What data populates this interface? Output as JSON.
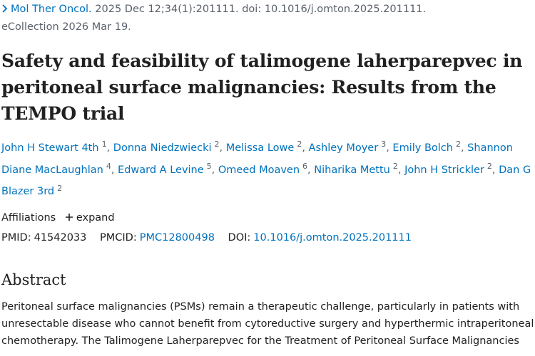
{
  "citation": {
    "journal": "Mol Ther Oncol.",
    "details": "2025 Dec 12;34(1):201111. doi: 10.1016/j.omton.2025.201111.",
    "ecollection": "eCollection 2026 Mar 19."
  },
  "title": "Safety and feasibility of talimogene laherparepvec in peritoneal surface malignancies: Results from the TEMPO trial",
  "authors": [
    {
      "name": "John H Stewart 4th",
      "aff": 1
    },
    {
      "name": "Donna Niedzwiecki",
      "aff": 2
    },
    {
      "name": "Melissa Lowe",
      "aff": 2
    },
    {
      "name": "Ashley Moyer",
      "aff": 3
    },
    {
      "name": "Emily Bolch",
      "aff": 2
    },
    {
      "name": "Shannon Diane MacLaughlan",
      "aff": 4
    },
    {
      "name": "Edward A Levine",
      "aff": 5
    },
    {
      "name": "Omeed Moaven",
      "aff": 6
    },
    {
      "name": "Niharika Mettu",
      "aff": 2
    },
    {
      "name": "John H Strickler",
      "aff": 2
    },
    {
      "name": "Dan G Blazer 3rd",
      "aff": 2
    }
  ],
  "affiliations": {
    "label": "Affiliations",
    "toggle": "expand"
  },
  "identifiers": {
    "pmid_label": "PMID:",
    "pmid": "41542033",
    "pmcid_label": "PMCID:",
    "pmcid": "PMC12800498",
    "doi_label": "DOI:",
    "doi": "10.1016/j.omton.2025.201111"
  },
  "abstract": {
    "heading": "Abstract",
    "text": "Peritoneal surface malignancies (PSMs) remain a therapeutic challenge, particularly in patients with unresectable disease who cannot benefit from cytoreductive surgery and hyperthermic intraperitoneal chemotherapy. The Talimogene Laherparepvec for the Treatment of Peritoneal Surface Malignancies"
  }
}
